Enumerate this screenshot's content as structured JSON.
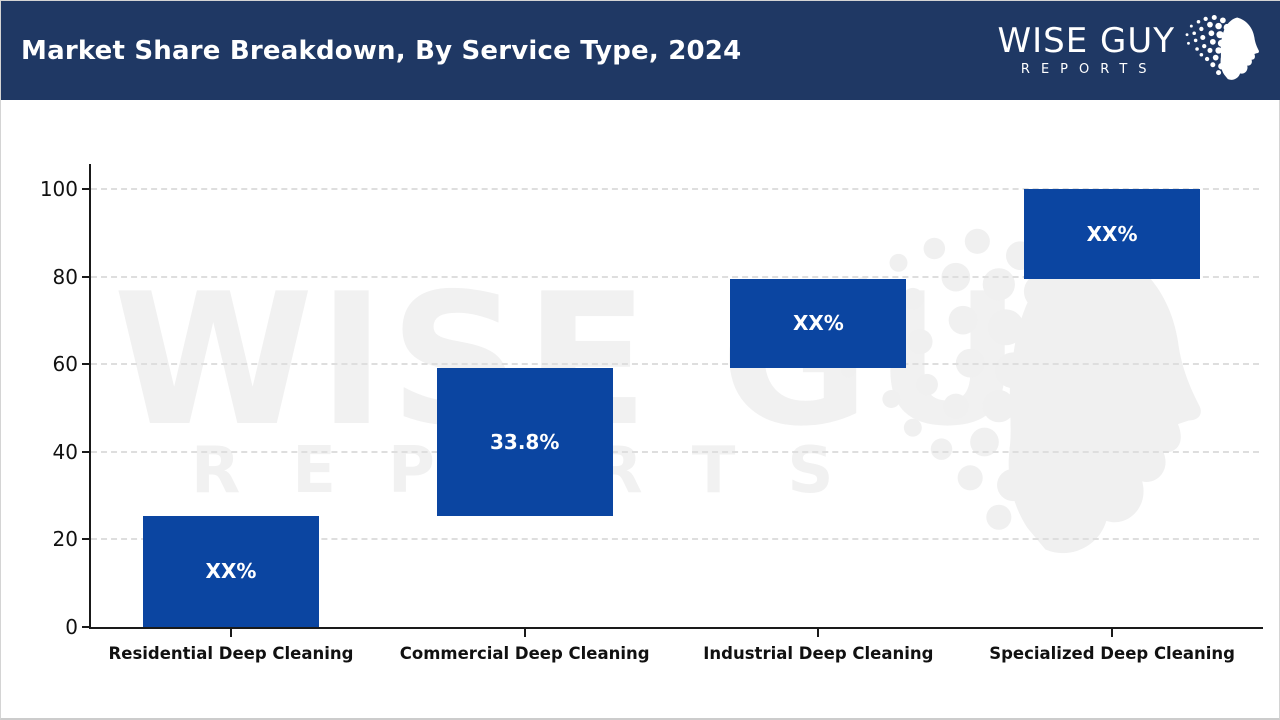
{
  "header": {
    "title": "Market Share Breakdown, By Service Type, 2024",
    "logo": {
      "line1": "WISE GUY",
      "line2": "REPORTS"
    }
  },
  "watermark": {
    "line1": "WISE GUY",
    "line2": "REPORTS"
  },
  "colors": {
    "header_bg": "#1F3864",
    "bar": "#0B45A1",
    "value_label": "#FFFFFF",
    "grid": "#DEDEDE",
    "axis": "#1A1A1A",
    "watermark": "#F1F1F1"
  },
  "chart_data": {
    "type": "bar",
    "subtype": "waterfall",
    "title": "Market Share Breakdown, By Service Type, 2024",
    "xlabel": "",
    "ylabel": "",
    "ylim": [
      0,
      105
    ],
    "yticks": [
      0,
      20,
      40,
      60,
      80,
      100
    ],
    "grid": "horizontal-dashed",
    "legend": "none",
    "bar_color": "#0B45A1",
    "categories": [
      "Residential Deep Cleaning",
      "Commercial Deep Cleaning",
      "Industrial Deep Cleaning",
      "Specialized Deep Cleaning"
    ],
    "segments": [
      {
        "category": "Residential Deep Cleaning",
        "start": 0,
        "end": 25.4,
        "label": "XX%"
      },
      {
        "category": "Commercial Deep Cleaning",
        "start": 25.4,
        "end": 59.2,
        "label": "33.8%"
      },
      {
        "category": "Industrial Deep Cleaning",
        "start": 59.2,
        "end": 79.5,
        "label": "XX%"
      },
      {
        "category": "Specialized Deep Cleaning",
        "start": 79.5,
        "end": 100,
        "label": "XX%"
      }
    ]
  }
}
